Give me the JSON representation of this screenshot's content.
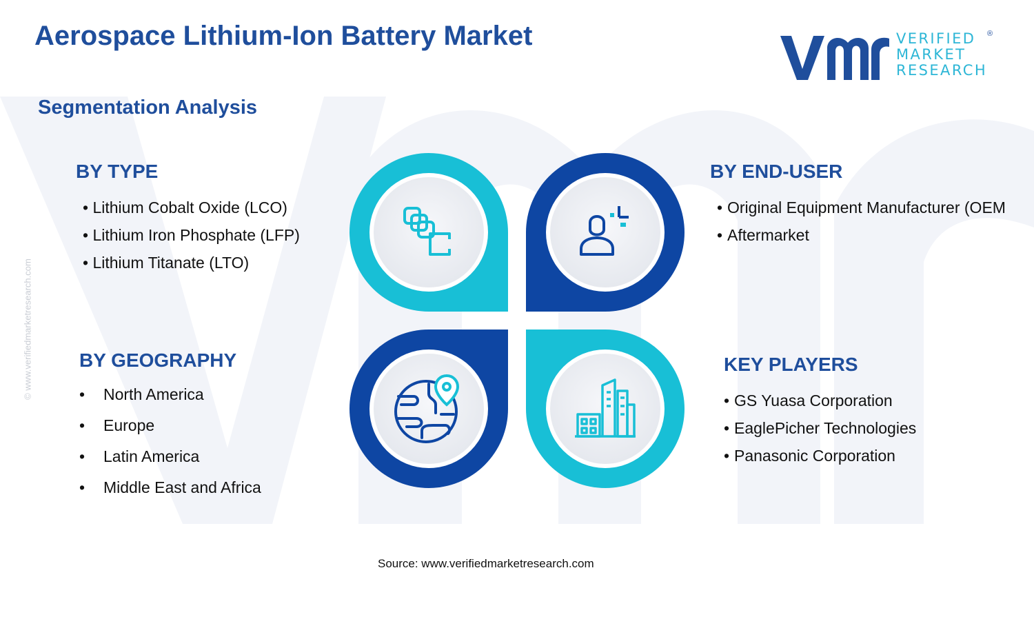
{
  "title": "Aerospace Lithium-Ion Battery Market",
  "subtitle": "Segmentation Analysis",
  "logo": {
    "line1": "VERIFIED",
    "line2": "MARKET",
    "line3": "RESEARCH",
    "reg": "®"
  },
  "side_url": "© www.verifiedmarketresearch.com",
  "colors": {
    "dark_blue": "#1f4e9c",
    "navy": "#0e46a3",
    "cyan": "#18bfd6",
    "light_bg": "#eef1f6"
  },
  "segments": {
    "type": {
      "heading": "BY TYPE",
      "items": [
        "Lithium Cobalt Oxide (LCO)",
        "Lithium Iron Phosphate (LFP)",
        "Lithium Titanate (LTO)"
      ],
      "icon": "battery-cells-icon"
    },
    "end_user": {
      "heading": "BY END-USER",
      "items": [
        "Original Equipment Manufacturer (OEM",
        "Aftermarket"
      ],
      "icon": "user-icon"
    },
    "geography": {
      "heading": "BY GEOGRAPHY",
      "items": [
        "North America",
        "Europe",
        "Latin America",
        "Middle East and Africa"
      ],
      "icon": "globe-pin-icon"
    },
    "key_players": {
      "heading": "KEY PLAYERS",
      "items": [
        "GS Yuasa Corporation",
        "EaglePicher Technologies",
        "Panasonic Corporation"
      ],
      "icon": "buildings-icon"
    }
  },
  "source": "Source: www.verifiedmarketresearch.com"
}
